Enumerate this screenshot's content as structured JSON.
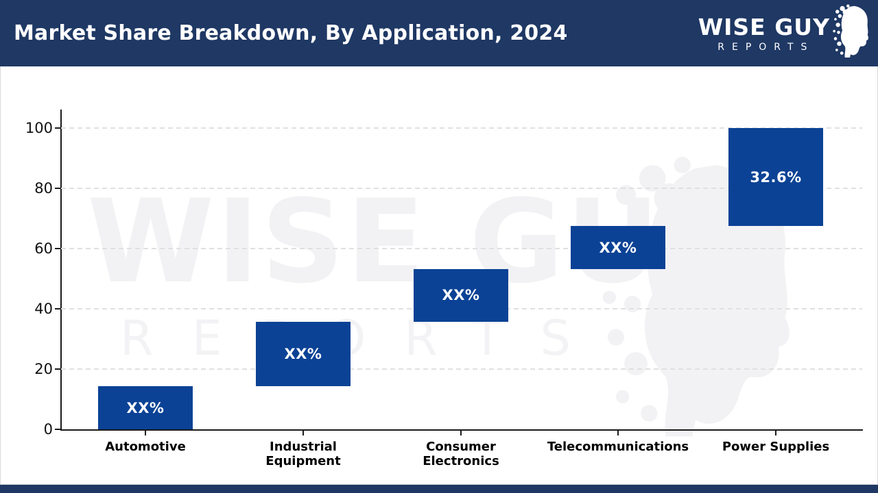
{
  "header": {
    "title": "Market Share Breakdown, By Application, 2024",
    "logo": {
      "brand": "WISE GUY",
      "sub": "REPORTS"
    }
  },
  "watermark": {
    "line1": "WISE GUY",
    "line2": "REPORTS"
  },
  "chart_data": {
    "type": "bar",
    "variant": "floating-waterfall",
    "title": "Market Share Breakdown, By Application, 2024",
    "categories": [
      "Automotive",
      "Industrial Equipment",
      "Consumer Electronics",
      "Telecommunications",
      "Power Supplies"
    ],
    "category_label_lines": [
      [
        "Automotive"
      ],
      [
        "Industrial",
        "Equipment"
      ],
      [
        "Consumer",
        "Electronics"
      ],
      [
        "Telecommunications"
      ],
      [
        "Power Supplies"
      ]
    ],
    "segments": [
      {
        "category": "Automotive",
        "start": 0,
        "end": 14.3,
        "span": 14.3,
        "value_label": "XX%"
      },
      {
        "category": "Industrial Equipment",
        "start": 14.3,
        "end": 35.7,
        "span": 21.4,
        "value_label": "XX%"
      },
      {
        "category": "Consumer Electronics",
        "start": 35.7,
        "end": 53.2,
        "span": 17.5,
        "value_label": "XX%"
      },
      {
        "category": "Telecommunications",
        "start": 53.2,
        "end": 67.4,
        "span": 14.2,
        "value_label": "XX%"
      },
      {
        "category": "Power Supplies",
        "start": 67.4,
        "end": 100,
        "span": 32.6,
        "value_label": "32.6%"
      }
    ],
    "ylim": [
      0,
      100
    ],
    "yticks": [
      0,
      20,
      40,
      60,
      80,
      100
    ],
    "xlabel": "",
    "ylabel": "",
    "grid": {
      "horizontal": true,
      "style": "dashed",
      "vertical": false
    },
    "legend": null,
    "colors": {
      "bar": "#0b4295",
      "bar_label": "#ffffff",
      "header_bg": "#1f3864",
      "footer_bg": "#1f3864",
      "grid": "#e0e0e0",
      "axis": "#1a1a1a",
      "watermark": "#f2f2f4"
    }
  }
}
